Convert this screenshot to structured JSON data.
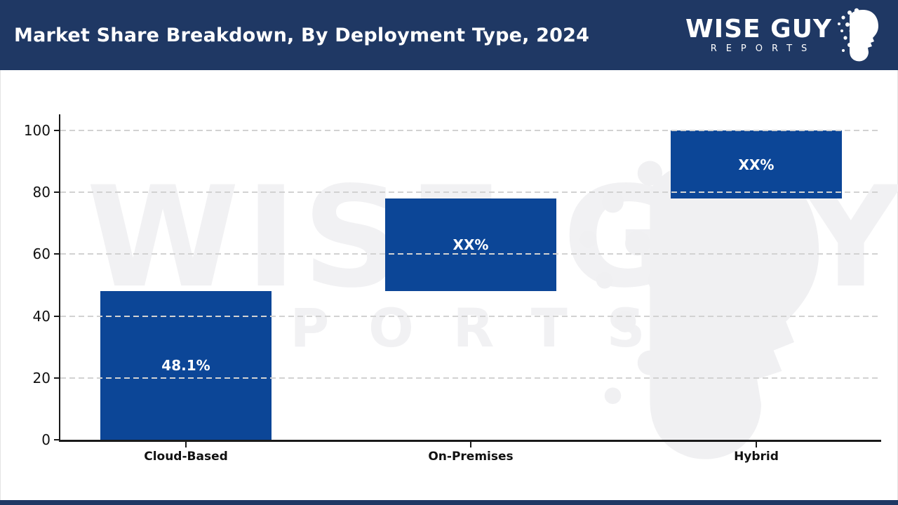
{
  "header": {
    "title": "Market Share Breakdown, By Deployment Type, 2024",
    "background": "#1f3864",
    "logo": {
      "wordmark": "WISE GUY",
      "subtext": "REPORTS"
    }
  },
  "watermark": {
    "line1": "WISE GUY",
    "line2": "REPORTS"
  },
  "chart_data": {
    "type": "bar",
    "variant": "waterfall",
    "title": "Market Share Breakdown, By Deployment Type, 2024",
    "categories": [
      "Cloud-Based",
      "On-Premises",
      "Hybrid"
    ],
    "segments": [
      {
        "category": "Cloud-Based",
        "start": 0,
        "end": 48.1,
        "label": "48.1%"
      },
      {
        "category": "On-Premises",
        "start": 48.1,
        "end": 78,
        "label": "XX%"
      },
      {
        "category": "Hybrid",
        "start": 78,
        "end": 100,
        "label": "XX%"
      }
    ],
    "ylim": [
      0,
      100
    ],
    "yticks": [
      0,
      20,
      40,
      60,
      80,
      100
    ],
    "xlabel": "",
    "ylabel": "",
    "grid": "horizontal-dashed",
    "legend": "none",
    "bar_color": "#0c4697",
    "grid_color": "#d2d2d2",
    "axis_color": "#1a1a1a",
    "tick_label_color": "#111111",
    "bar_label_color": "#ffffff"
  },
  "footer": {
    "background": "#1f3864"
  }
}
